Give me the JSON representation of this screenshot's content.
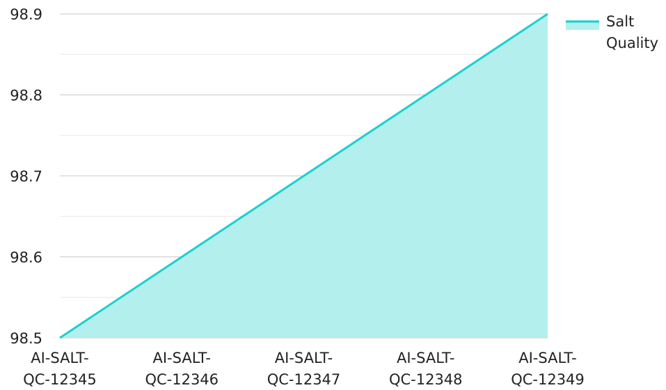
{
  "chart_data": {
    "type": "area",
    "categories": [
      [
        "AI-SALT-",
        "QC-12345"
      ],
      [
        "AI-SALT-",
        "QC-12346"
      ],
      [
        "AI-SALT-",
        "QC-12347"
      ],
      [
        "AI-SALT-",
        "QC-12348"
      ],
      [
        "AI-SALT-",
        "QC-12349"
      ]
    ],
    "series": [
      {
        "name": [
          "Salt",
          "Quality"
        ],
        "values": [
          98.5,
          98.6,
          98.7,
          98.8,
          98.9
        ],
        "color": "#1ccfcf",
        "fill": "#b2efed"
      }
    ],
    "ylim": [
      98.5,
      98.9
    ],
    "yticks": [
      "98.5",
      "98.6",
      "98.7",
      "98.8",
      "98.9"
    ],
    "ytick_values": [
      98.5,
      98.6,
      98.7,
      98.8,
      98.9
    ],
    "grid": true,
    "legend_position": "top-right"
  }
}
